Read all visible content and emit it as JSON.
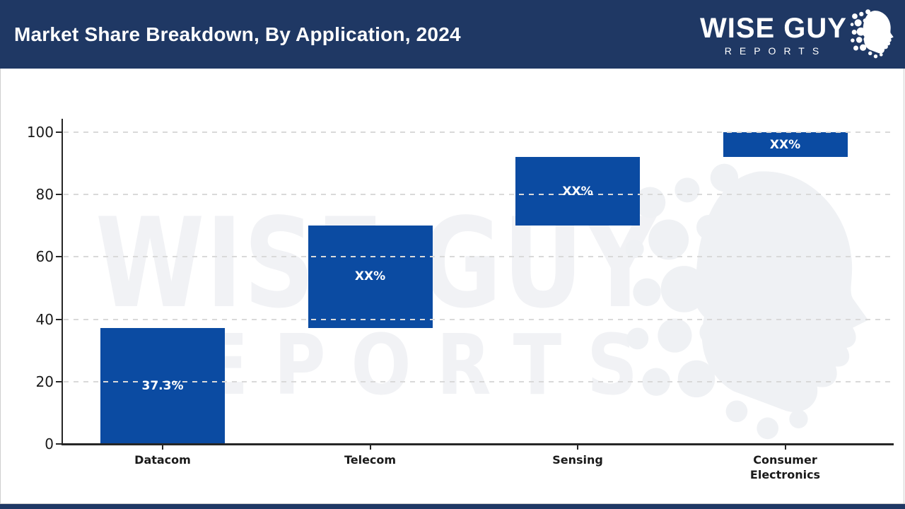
{
  "header": {
    "title": "Market Share Breakdown, By Application, 2024",
    "bg_color": "#1f3864",
    "logo": {
      "line1": "WISE GUY",
      "line2": "REPORTS"
    }
  },
  "watermark": {
    "line1": "WISE GUY",
    "line2": "REPORTS"
  },
  "chart_data": {
    "type": "bar",
    "subtype": "floating-waterfall",
    "title": "Market Share Breakdown, By Application, 2024",
    "categories": [
      "Datacom",
      "Telecom",
      "Sensing",
      "Consumer Electronics"
    ],
    "series": [
      {
        "name": "Market Share (%)",
        "ranges": [
          [
            0,
            37.3
          ],
          [
            37.3,
            70
          ],
          [
            70,
            92
          ],
          [
            92,
            100
          ]
        ]
      }
    ],
    "bar_labels": [
      "37.3%",
      "XX%",
      "XX%",
      "XX%"
    ],
    "yticks": [
      0,
      20,
      40,
      60,
      80,
      100
    ],
    "ylim": [
      0,
      105
    ],
    "xlabel": "",
    "ylabel": "",
    "grid": "horizontal-dashed",
    "legend": "none",
    "bar_color": "#0b4ba2",
    "value_label_color": "#ffffff"
  }
}
